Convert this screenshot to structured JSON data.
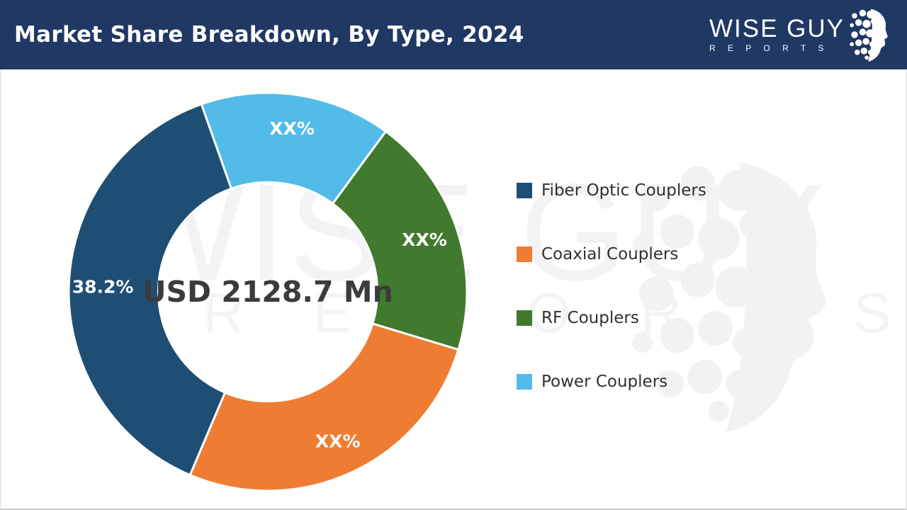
{
  "header": {
    "title": "Market Share Breakdown, By Type, 2024",
    "logo": {
      "line1": "WISE GUY",
      "line2": "R E P O R T S"
    }
  },
  "watermark": {
    "line1": "WISE GUY",
    "line2": "R E P O R T S"
  },
  "chart_data": {
    "type": "pie",
    "subtype": "donut",
    "title": "Market Share Breakdown, By Type, 2024",
    "center_label": "USD 2128.7 Mn",
    "slices": [
      {
        "label": "Fiber Optic Couplers",
        "display": "38.2%",
        "value": 38.2,
        "color": "#1F4E74"
      },
      {
        "label": "Coaxial Couplers",
        "display": "XX%",
        "value": 26.7,
        "color": "#EE7D33"
      },
      {
        "label": "RF Couplers",
        "display": "XX%",
        "value": 19.6,
        "color": "#417A2E"
      },
      {
        "label": "Power Couplers",
        "display": "XX%",
        "value": 15.5,
        "color": "#52BBE8"
      }
    ],
    "draw_order": [
      0,
      3,
      2,
      1
    ],
    "start_angle_deg": 203,
    "donut_hole_ratio": 0.55,
    "legend_position": "right",
    "slice_label_color": "#ffffff"
  }
}
